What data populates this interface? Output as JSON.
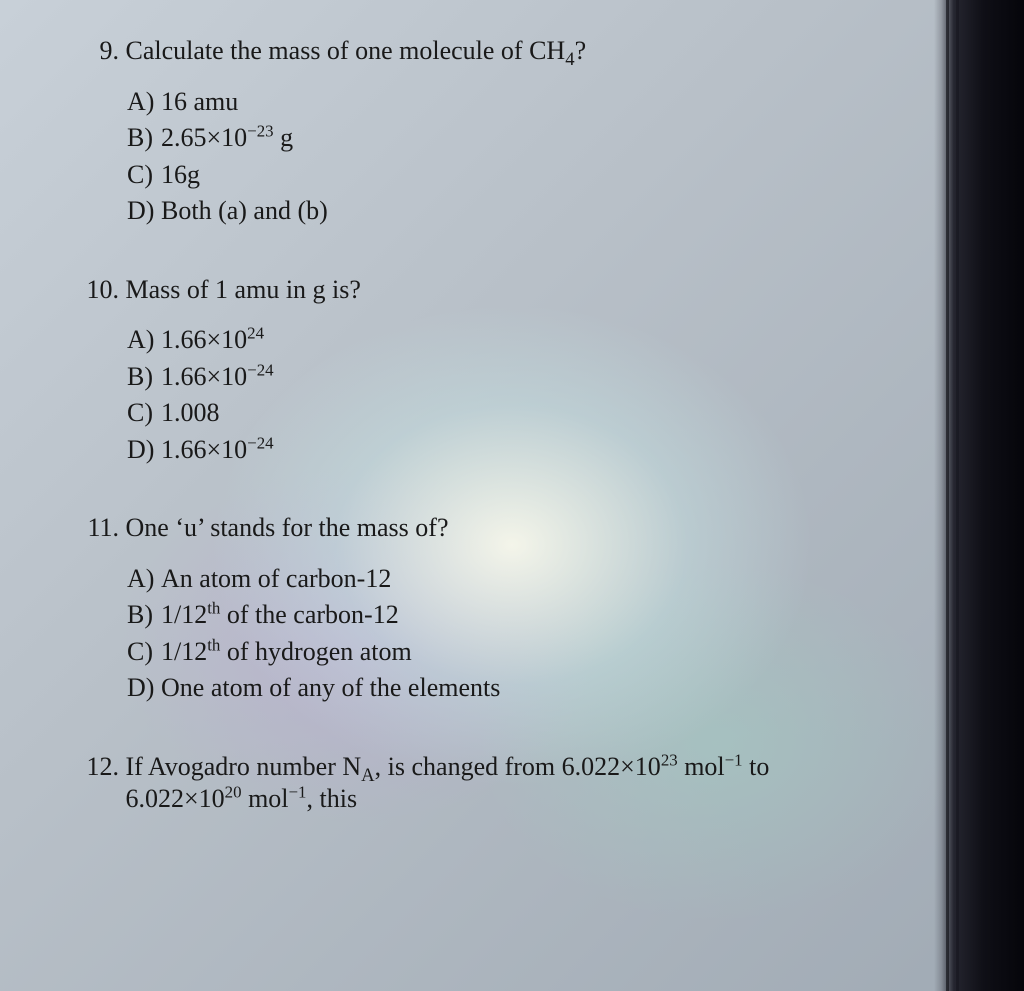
{
  "text_color": "#191919",
  "font_family": "Times New Roman",
  "base_fontsize_pt": 20,
  "questions": [
    {
      "number": "9.",
      "stem_html": "Calculate the mass of one molecule of CH<sub>4</sub>?",
      "options": [
        {
          "label": "A)",
          "html": "16 amu"
        },
        {
          "label": "B)",
          "html": "2.65×10<sup>−23</sup> g"
        },
        {
          "label": "C)",
          "html": "16g"
        },
        {
          "label": "D)",
          "html": "Both (a) and (b)"
        }
      ]
    },
    {
      "number": "10.",
      "stem_html": "Mass of 1 amu in g is?",
      "options": [
        {
          "label": "A)",
          "html": "1.66×10<sup>24</sup>"
        },
        {
          "label": "B)",
          "html": "1.66×10<sup>−24</sup>"
        },
        {
          "label": "C)",
          "html": "1.008"
        },
        {
          "label": "D)",
          "html": "1.66×10<sup>−24</sup>"
        }
      ]
    },
    {
      "number": "11.",
      "stem_html": "One ‘u’ stands for the mass of?",
      "options": [
        {
          "label": "A)",
          "html": "An atom of carbon-12"
        },
        {
          "label": "B)",
          "html": "1/12<sup>th</sup> of the carbon-12"
        },
        {
          "label": "C)",
          "html": "1/12<sup>th</sup> of hydrogen atom"
        },
        {
          "label": "D)",
          "html": "One atom of any of the elements"
        }
      ]
    },
    {
      "number": "12.",
      "stem_html": "If Avogadro number N<sub>A</sub>, is changed from 6.022×10<sup>23</sup> mol<sup>−1</sup> to 6.022×10<sup>20</sup> mol<sup>−1</sup>, this",
      "options": []
    }
  ]
}
